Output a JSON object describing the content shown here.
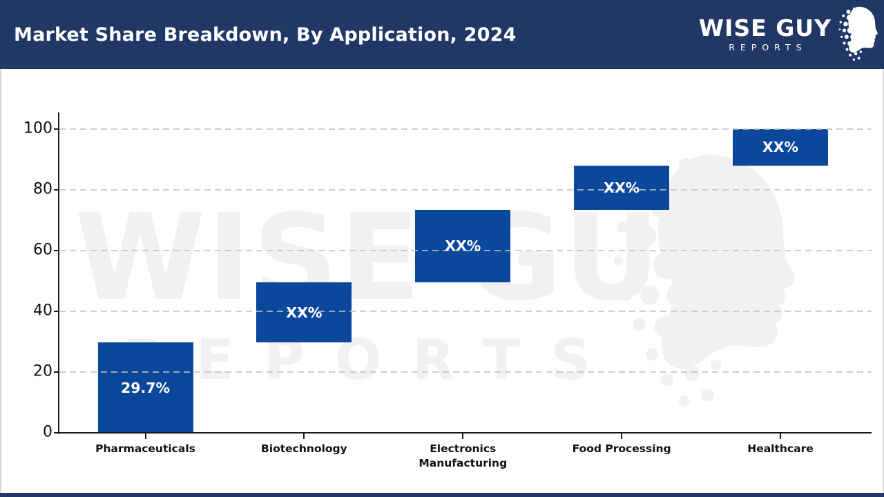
{
  "header": {
    "title": "Market Share Breakdown, By Application, 2024",
    "logo": {
      "name": "WISE GUY",
      "tagline": "REPORTS"
    }
  },
  "watermark": {
    "name": "WISE GUY",
    "tagline": "REPORTS"
  },
  "colors": {
    "header_bg": "#213866",
    "bar": "#0b489c",
    "grid": "#c1c1c4",
    "watermark": "#f1f1f3",
    "axis": "#1a1a1a",
    "bar_label": "#ffffff"
  },
  "chart_data": {
    "type": "bar",
    "variant": "waterfall",
    "title": "Market Share Breakdown, By Application, 2024",
    "unit": "%",
    "xlabel": "",
    "ylabel": "",
    "categories": [
      "Pharmaceuticals",
      "Biotechnology",
      "Electronics Manufacturing",
      "Food Processing",
      "Healthcare"
    ],
    "segments": [
      {
        "category": "Pharmaceuticals",
        "start": 0,
        "value": 29.7,
        "end": 29.7,
        "label": "29.7%"
      },
      {
        "category": "Biotechnology",
        "start": 29.7,
        "value": 19.8,
        "end": 49.5,
        "label": "XX%"
      },
      {
        "category": "Electronics Manufacturing",
        "start": 49.5,
        "value": 24.0,
        "end": 73.5,
        "label": "XX%"
      },
      {
        "category": "Food Processing",
        "start": 73.5,
        "value": 14.5,
        "end": 88.0,
        "label": "XX%"
      },
      {
        "category": "Healthcare",
        "start": 88.0,
        "value": 12.0,
        "end": 100.0,
        "label": "XX%"
      }
    ],
    "yticks": [
      0,
      20,
      40,
      60,
      80,
      100
    ],
    "ylim": [
      0,
      105.5
    ],
    "grid": {
      "axis": "y",
      "style": "dashed",
      "drawn_over_bars": true
    },
    "legend": null
  }
}
